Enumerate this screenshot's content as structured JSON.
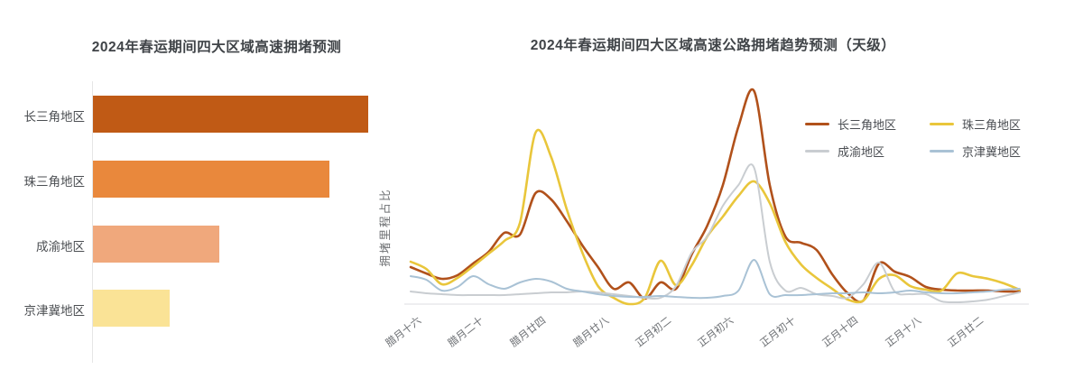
{
  "accent_colors": {
    "bar_axis_line": "#e6e6e6",
    "baseline": "#e4e4e6",
    "title_text": "#3f4347",
    "label_text": "#4b4e52",
    "tick_text": "#6f7276"
  },
  "chart_data": [
    {
      "id": "regional-congestion-bar",
      "type": "bar",
      "orientation": "horizontal",
      "title": "2024年春运期间四大区域高速拥堵预测",
      "categories": [
        "长三角地区",
        "珠三角地区",
        "成渝地区",
        "京津冀地区"
      ],
      "values": [
        100,
        86,
        46,
        28
      ],
      "value_note": "relative congestion level, no numeric axis shown",
      "bar_colors": [
        "#c05a15",
        "#e9883c",
        "#f0a87c",
        "#fae396"
      ],
      "grid": "off"
    },
    {
      "id": "daily-congestion-trend-line",
      "type": "line",
      "title": "2024年春运期间四大区域高速公路拥堵趋势预测（天级）",
      "xlabel": "",
      "ylabel": "拥堵里程占比",
      "x_tick_labels": [
        "腊月十六",
        "腊月二十",
        "腊月廿四",
        "腊月廿八",
        "正月初二",
        "正月初六",
        "正月初十",
        "正月十四",
        "正月十八",
        "正月廿二"
      ],
      "x_tick_day_index": [
        0,
        4,
        8,
        12,
        16,
        20,
        24,
        28,
        32,
        36
      ],
      "days_total": 40,
      "ylim": [
        0,
        250
      ],
      "grid": "off",
      "legend_position": "top-right-two-columns",
      "series": [
        {
          "name": "长三角地区",
          "key": "yangtze-delta",
          "color": "#b1511b",
          "values": [
            41,
            34,
            28,
            32,
            45,
            58,
            79,
            77,
            123,
            116,
            92,
            65,
            41,
            17,
            24,
            6,
            24,
            17,
            55,
            87,
            132,
            197,
            236,
            132,
            75,
            68,
            60,
            33,
            12,
            4,
            45,
            36,
            30,
            19,
            16,
            15,
            15,
            15,
            14,
            14
          ]
        },
        {
          "name": "珠三角地区",
          "key": "pearl-delta",
          "color": "#e9c63b",
          "values": [
            47,
            39,
            22,
            29,
            42,
            56,
            70,
            90,
            190,
            163,
            105,
            57,
            20,
            7,
            0,
            7,
            48,
            21,
            43,
            75,
            97,
            120,
            136,
            112,
            69,
            44,
            29,
            17,
            5,
            4,
            28,
            32,
            20,
            16,
            15,
            34,
            31,
            28,
            23,
            16
          ]
        },
        {
          "name": "成渝地区",
          "key": "chengyu",
          "color": "#c9cdd1",
          "values": [
            14,
            12,
            11,
            10,
            10,
            10,
            10,
            11,
            12,
            13,
            13,
            14,
            13,
            11,
            9,
            7,
            7,
            20,
            57,
            75,
            109,
            132,
            151,
            47,
            15,
            18,
            11,
            9,
            7,
            22,
            46,
            14,
            11,
            11,
            3,
            2,
            3,
            5,
            9,
            13
          ]
        },
        {
          "name": "京津冀地区",
          "key": "jingjinji",
          "color": "#a9c2d5",
          "values": [
            31,
            27,
            15,
            19,
            31,
            22,
            17,
            24,
            28,
            25,
            17,
            14,
            11,
            9,
            8,
            8,
            9,
            8,
            7,
            7,
            9,
            15,
            49,
            11,
            10,
            10,
            11,
            12,
            12,
            13,
            12,
            13,
            15,
            13,
            12,
            12,
            13,
            14,
            16,
            17
          ]
        }
      ]
    }
  ]
}
